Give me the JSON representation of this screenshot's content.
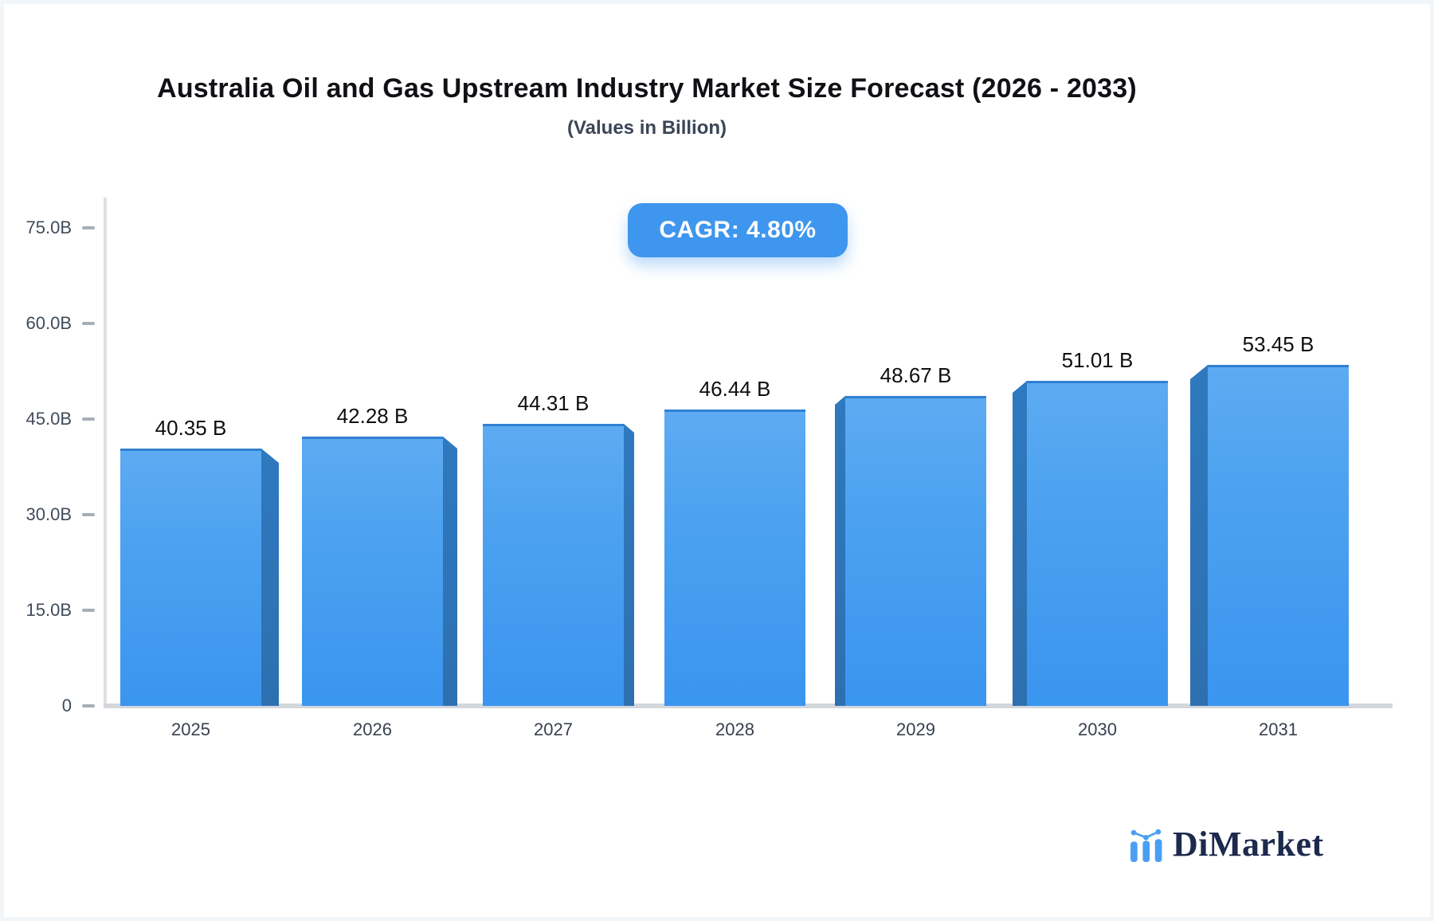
{
  "header": {
    "title": "Australia Oil and Gas Upstream Industry Market Size Forecast (2026 - 2033)",
    "subtitle": "(Values in Billion)"
  },
  "badge": {
    "label": "CAGR: 4.80%",
    "color": "#3e96ee"
  },
  "chart_data": {
    "type": "bar",
    "title": "Australia Oil and Gas Upstream Industry Market Size Forecast (2026 - 2033)",
    "subtitle": "(Values in Billion)",
    "unit": "Billion",
    "categories": [
      "2025",
      "2026",
      "2027",
      "2028",
      "2029",
      "2030",
      "2031"
    ],
    "values": [
      40.35,
      42.28,
      44.31,
      46.44,
      48.67,
      51.01,
      53.45
    ],
    "value_labels": [
      "40.35 B",
      "42.28 B",
      "44.31 B",
      "46.44 B",
      "48.67 B",
      "51.01 B",
      "53.45 B"
    ],
    "ylim": [
      0,
      75
    ],
    "yticks": {
      "labels": [
        "75.0B",
        "60.0B",
        "45.0B",
        "30.0B",
        "15.0B",
        "0"
      ],
      "values": [
        75,
        60,
        45,
        30,
        15,
        0
      ]
    },
    "grid": false,
    "legend": null,
    "colors": {
      "bar_top": "#5dabf2",
      "bar_bottom": "#3a95ef",
      "bar_edge": "#2f80d2",
      "bar_side": "#2e74b6",
      "axis": "#d3d7dc",
      "tick_text": "#414b5a",
      "value_text": "#0d0f12"
    }
  },
  "logo": {
    "name": "DiMarket",
    "icon": "bar-chart-logo-icon",
    "text_color": "#1d2a4d",
    "icon_color": "#4a9ff4"
  }
}
